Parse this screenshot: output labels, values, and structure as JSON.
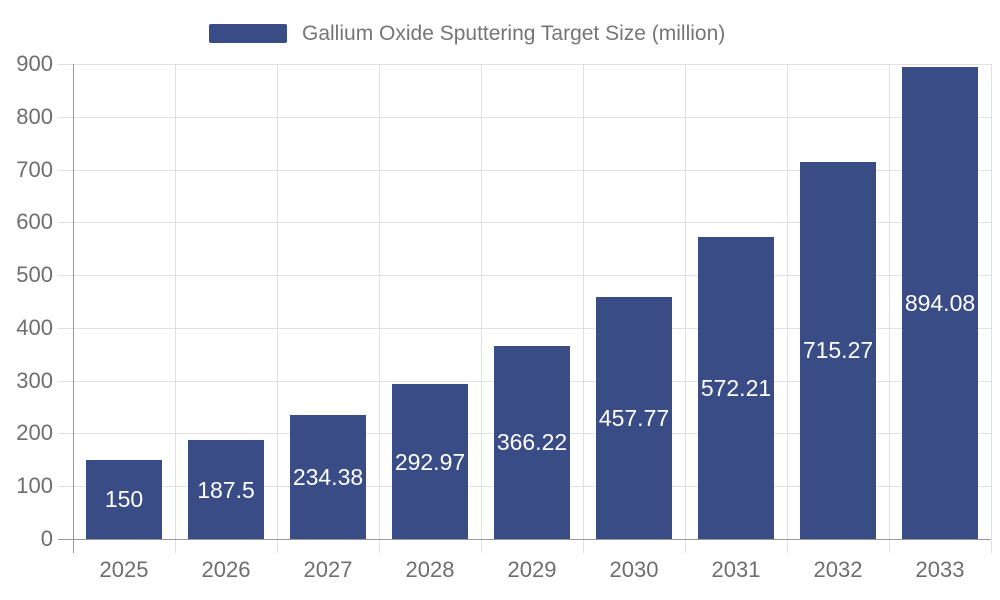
{
  "chart_data": {
    "type": "bar",
    "title": "Gallium Oxide Sputtering Target Size (million)",
    "categories": [
      "2025",
      "2026",
      "2027",
      "2028",
      "2029",
      "2030",
      "2031",
      "2032",
      "2033"
    ],
    "values": [
      150,
      187.5,
      234.38,
      292.97,
      366.22,
      457.77,
      572.21,
      715.27,
      894.08
    ],
    "value_labels": [
      "150",
      "187.5",
      "234.38",
      "292.97",
      "366.22",
      "457.77",
      "572.21",
      "715.27",
      "894.08"
    ],
    "xlabel": "",
    "ylabel": "",
    "ylim": [
      0,
      900
    ],
    "ytick_interval": 100,
    "ytick_labels": [
      "0",
      "100",
      "200",
      "300",
      "400",
      "500",
      "600",
      "700",
      "800",
      "900"
    ],
    "grid": true,
    "legend_position": "top-center",
    "value_label_position": "center-inside"
  },
  "colors": {
    "bar": "#3A4C86",
    "grid": "#E0E0E0",
    "axis": "#999999",
    "tick_label": "#6E6E6E",
    "legend_label": "#757575",
    "value_label": "#FFFFFF",
    "background": "#FFFFFF"
  }
}
